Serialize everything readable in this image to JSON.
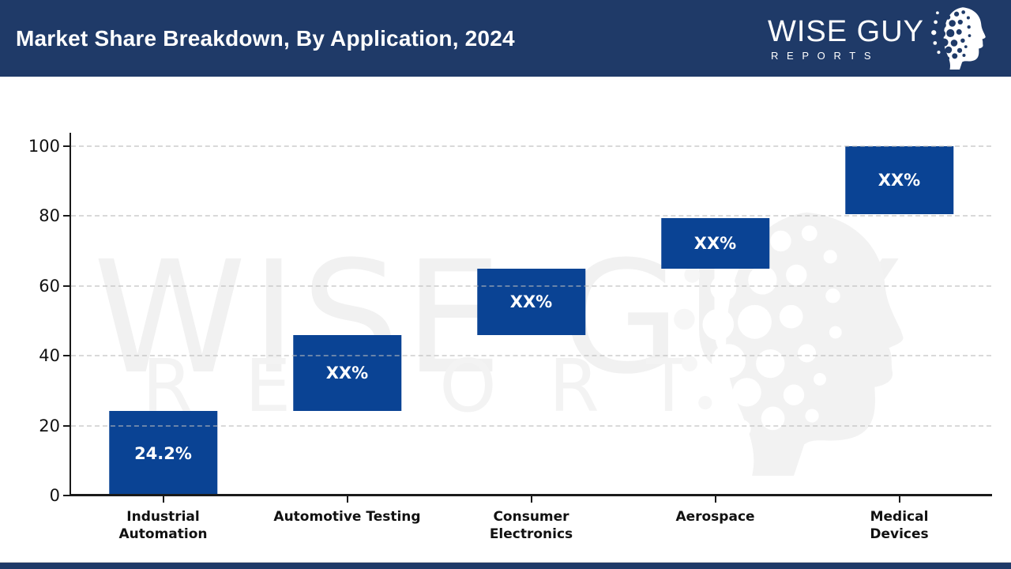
{
  "header": {
    "title": "Market Share Breakdown, By Application, 2024",
    "brand": {
      "line1": "WISE GUY",
      "line2": "REPORTS"
    }
  },
  "watermark": {
    "line1": "WISE GUY",
    "line2": "REPORTS"
  },
  "chart_data": {
    "type": "bar",
    "subtype": "waterfall",
    "title": "Market Share Breakdown, By Application, 2024",
    "categories": [
      "Industrial\nAutomation",
      "Automotive Testing",
      "Consumer\nElectronics",
      "Aerospace",
      "Medical Devices"
    ],
    "segments": [
      {
        "category": "Industrial Automation",
        "start": 0,
        "end": 24.2,
        "label": "24.2%"
      },
      {
        "category": "Automotive Testing",
        "start": 24.2,
        "end": 46,
        "label": "XX%"
      },
      {
        "category": "Consumer Electronics",
        "start": 46,
        "end": 65,
        "label": "XX%"
      },
      {
        "category": "Aerospace",
        "start": 65,
        "end": 79.5,
        "label": "XX%"
      },
      {
        "category": "Medical Devices",
        "start": 80.5,
        "end": 100,
        "label": "XX%"
      }
    ],
    "ylim": [
      0,
      100
    ],
    "yticks": [
      0,
      20,
      40,
      60,
      80,
      100
    ],
    "xlabel": "",
    "ylabel": "",
    "grid": "horizontal-dashed",
    "legend": "none"
  },
  "colors": {
    "header_bg": "#1f3a68",
    "footer_bg": "#1f3a68",
    "bar": "#0a4394",
    "bar_label": "#ffffff",
    "grid": "#bbbbbb",
    "axis": "#1a1a1a",
    "watermark": "#f1f1f1"
  }
}
